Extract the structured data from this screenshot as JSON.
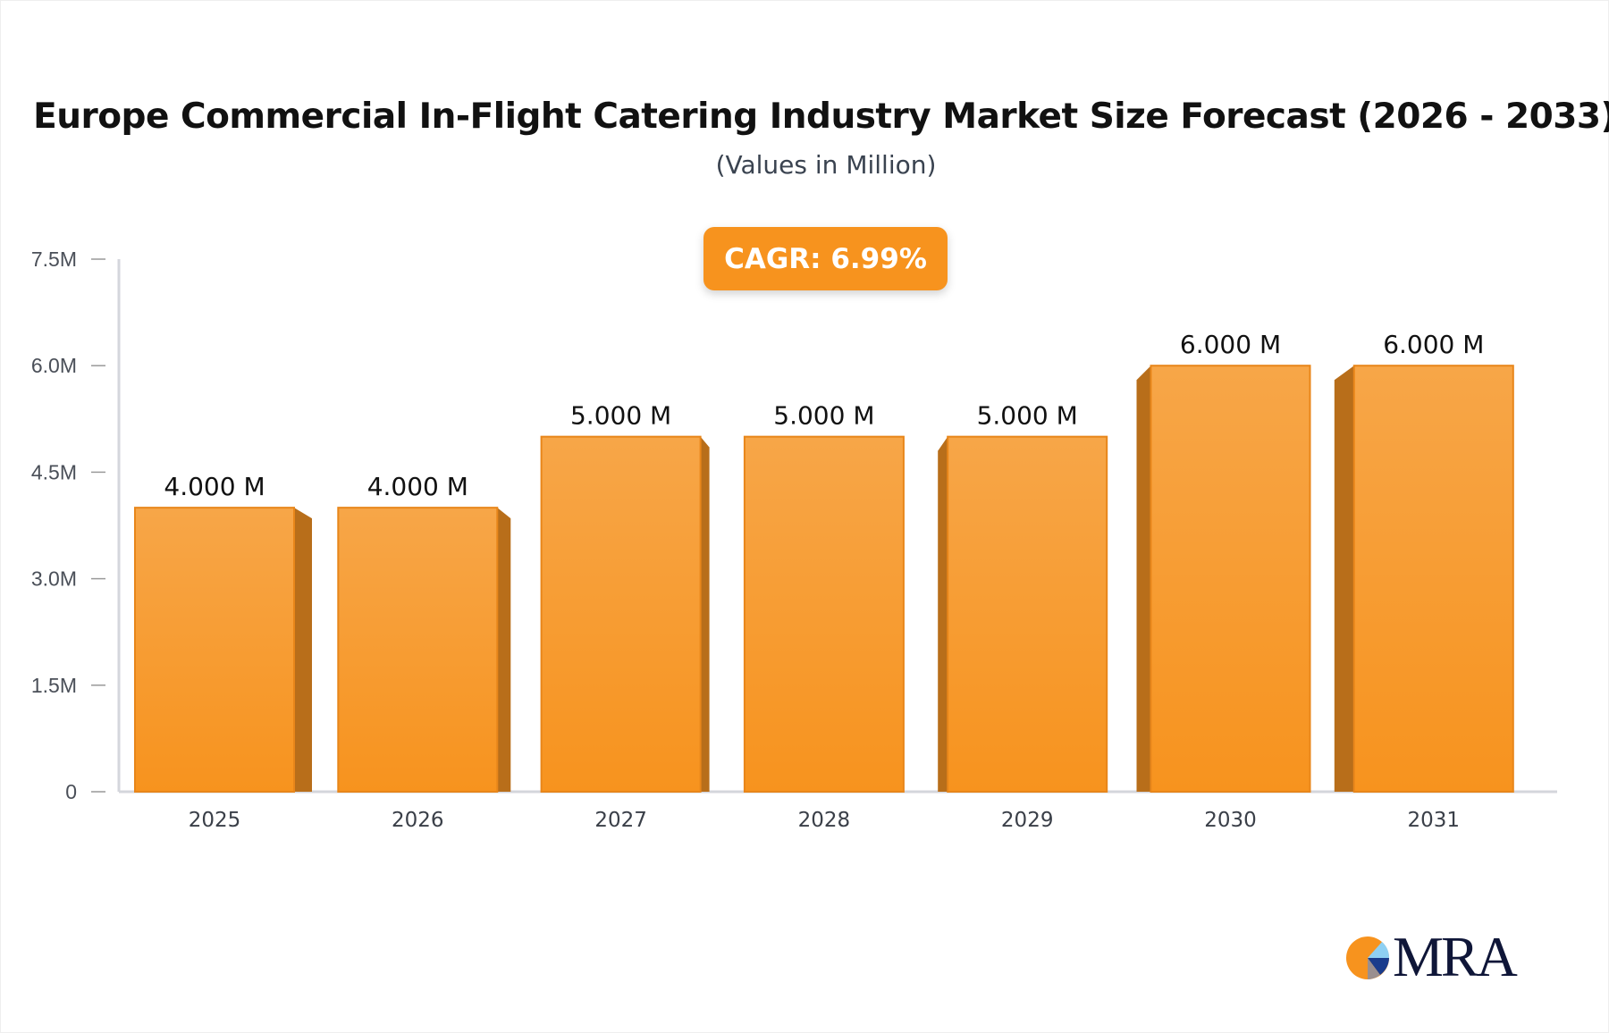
{
  "chart_data": {
    "type": "bar",
    "title": "Europe Commercial In-Flight Catering Industry Market Size Forecast (2026 - 2033)",
    "subtitle": "(Values in Million)",
    "annotation": "CAGR: 6.99%",
    "categories": [
      "2025",
      "2026",
      "2027",
      "2028",
      "2029",
      "2030",
      "2031"
    ],
    "values": [
      4.0,
      4.0,
      5.0,
      5.0,
      5.0,
      6.0,
      6.0
    ],
    "data_labels": [
      "4.000 M",
      "4.000 M",
      "5.000 M",
      "5.000 M",
      "5.000 M",
      "6.000 M",
      "6.000 M"
    ],
    "ylim": [
      0,
      7.5
    ],
    "yticks": [
      0,
      1.5,
      3.0,
      4.5,
      6.0,
      7.5
    ],
    "ytick_labels": [
      "0",
      "1.5M",
      "3.0M",
      "4.5M",
      "6.0M",
      "7.5M"
    ],
    "xlabel": "",
    "ylabel": "",
    "grid": false,
    "colors": {
      "bar": "#F7931E",
      "bar_top": "#F7A648",
      "bar_side": "#B86E1A",
      "badge": "#F7931E"
    }
  },
  "logo": {
    "text": "MRA"
  }
}
